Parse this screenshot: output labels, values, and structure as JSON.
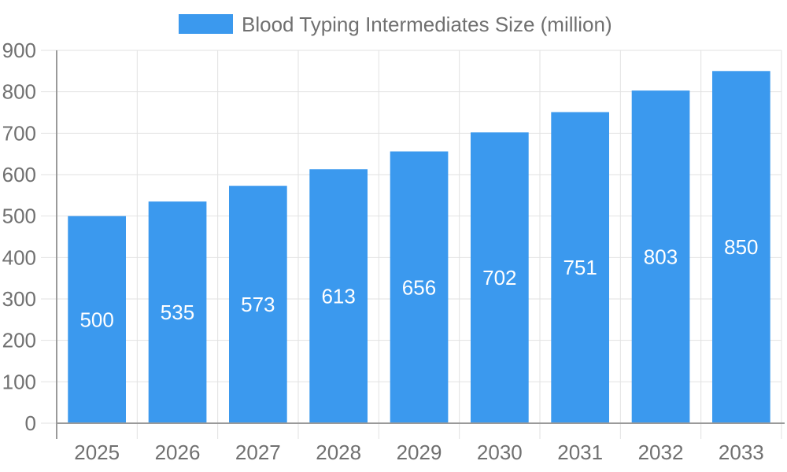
{
  "legend": {
    "label": "Blood Typing Intermediates Size (million)"
  },
  "chart_data": {
    "type": "bar",
    "title": "",
    "categories": [
      "2025",
      "2026",
      "2027",
      "2028",
      "2029",
      "2030",
      "2031",
      "2032",
      "2033"
    ],
    "series": [
      {
        "name": "Blood Typing Intermediates Size (million)",
        "values": [
          500,
          535,
          573,
          613,
          656,
          702,
          751,
          803,
          850
        ]
      }
    ],
    "value_labels": [
      "500",
      "535",
      "573",
      "613",
      "656",
      "702",
      "751",
      "803",
      "850"
    ],
    "xlabel": "",
    "ylabel": "",
    "ylim": [
      0,
      900
    ],
    "yticks": [
      0,
      100,
      200,
      300,
      400,
      500,
      600,
      700,
      800,
      900
    ],
    "grid": true,
    "legend_position": "top",
    "colors": {
      "bar": "#3B99EE",
      "value_label": "#FFFFFF",
      "axis_text": "#707070",
      "gridline": "#E2E2E2",
      "axis_line": "#9A9A9A"
    }
  }
}
